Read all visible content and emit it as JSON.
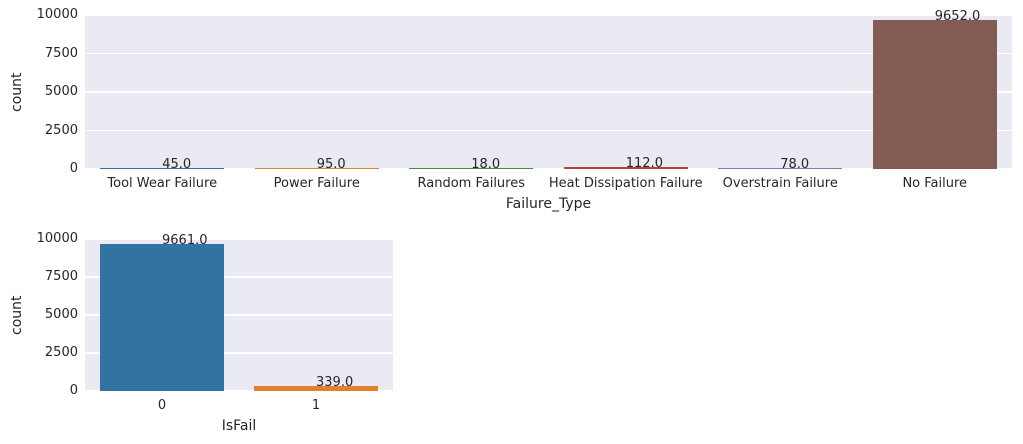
{
  "page": {
    "background_color": "#ffffff",
    "plot_background_color": "#eaeaf2",
    "grid_color": "#ffffff",
    "text_color": "#262626"
  },
  "chart_data": [
    {
      "type": "bar",
      "title": "",
      "xlabel": "Failure_Type",
      "ylabel": "count",
      "categories": [
        "Tool Wear Failure",
        "Power Failure",
        "Random Failures",
        "Heat Dissipation Failure",
        "Overstrain Failure",
        "No Failure"
      ],
      "values": [
        45,
        95,
        18,
        112,
        78,
        9652
      ],
      "bar_value_labels": [
        "45.0",
        "95.0",
        "18.0",
        "112.0",
        "78.0",
        "9652.0"
      ],
      "bar_colors": [
        "#3274a1",
        "#e1812c",
        "#3a923a",
        "#c03d3e",
        "#9372b2",
        "#845b53"
      ],
      "ylim": [
        0,
        10000
      ],
      "yticks": [
        0,
        2500,
        5000,
        7500,
        10000
      ],
      "ytick_labels": [
        "0",
        "2500",
        "5000",
        "7500",
        "10000"
      ],
      "grid": true,
      "legend": "none"
    },
    {
      "type": "bar",
      "title": "",
      "xlabel": "IsFail",
      "ylabel": "count",
      "categories": [
        "0",
        "1"
      ],
      "values": [
        9661,
        339
      ],
      "bar_value_labels": [
        "9661.0",
        "339.0"
      ],
      "bar_colors": [
        "#3274a1",
        "#e1812c"
      ],
      "ylim": [
        0,
        10000
      ],
      "yticks": [
        0,
        2500,
        5000,
        7500,
        10000
      ],
      "ytick_labels": [
        "0",
        "2500",
        "5000",
        "7500",
        "10000"
      ],
      "grid": true,
      "legend": "none"
    }
  ]
}
